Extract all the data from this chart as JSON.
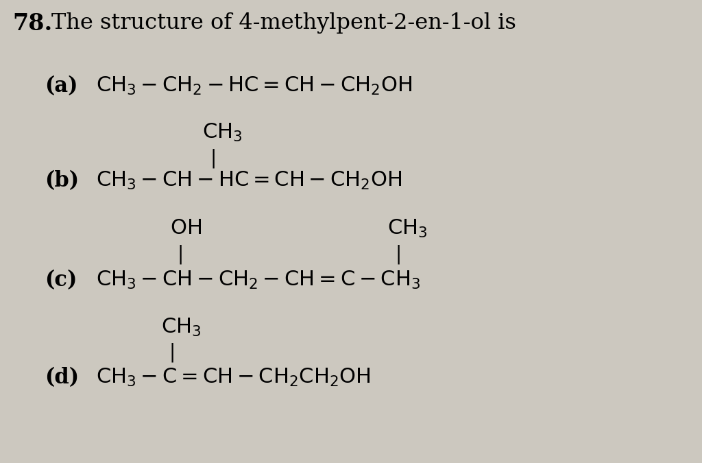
{
  "background_color": "#ccc8bf",
  "fig_width": 10.24,
  "fig_height": 6.75,
  "dpi": 100,
  "title_num": "78.",
  "question_text": "The structure of 4-methylpent-2-en-1-ol is",
  "label_a": "(a)",
  "label_b": "(b)",
  "label_c": "(c)",
  "label_d": "(d)",
  "formula_a": "$\\mathrm{CH_3-CH_2-HC=CH-CH_2OH}$",
  "formula_b": "$\\mathrm{CH_3-CH-HC=CH-CH_2OH}$",
  "formula_c": "$\\mathrm{CH_3-CH-CH_2-CH=C-CH_3}$",
  "formula_d": "$\\mathrm{CH_3-C=CH-CH_2CH_2OH}$",
  "ch3_b": "$\\mathrm{CH_3}$",
  "oh_c": "$\\mathrm{OH}$",
  "ch3_c": "$\\mathrm{CH_3}$",
  "ch3_d": "$\\mathrm{CH_3}$",
  "bar": "|"
}
